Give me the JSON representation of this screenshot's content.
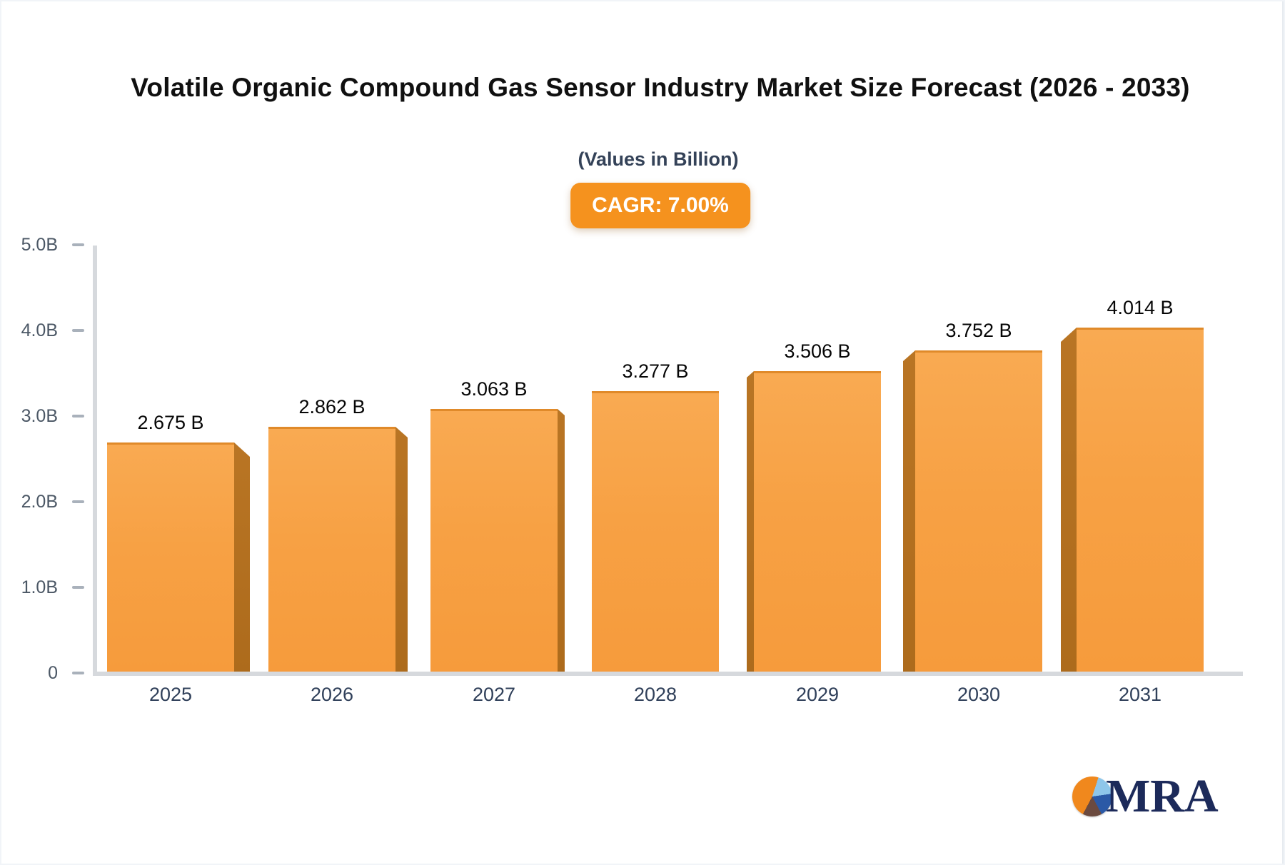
{
  "logo": {
    "text": "MRA"
  },
  "colors": {
    "bar_face": "#f7a144",
    "bar_face_top_edge": "#e08a2a",
    "bar_3d_side": "#b06e1c",
    "badge_background": "#f5921e",
    "badge_text": "#ffffff",
    "title_text": "#101010",
    "subtitle_text": "#344258",
    "axis_line": "#d6d9dd",
    "y_tick_text": "#4b5765",
    "x_label_text": "#30405a",
    "value_label_text": "#060606",
    "logo_navy": "#1c2a5a",
    "logo_orange": "#f0881d",
    "logo_light_blue": "#8ec6ea",
    "logo_blue": "#2b59a6",
    "logo_dark": "#6b4a3f"
  },
  "chart_data": {
    "type": "bar",
    "title": "Volatile Organic Compound Gas Sensor Industry Market Size Forecast (2026 - 2033)",
    "subtitle": "(Values in Billion)",
    "cagr_label": "CAGR: 7.00%",
    "categories": [
      "2025",
      "2026",
      "2027",
      "2028",
      "2029",
      "2030",
      "2031"
    ],
    "values": [
      2.675,
      2.862,
      3.063,
      3.277,
      3.506,
      3.752,
      4.014
    ],
    "value_labels": [
      "2.675 B",
      "2.862 B",
      "3.063 B",
      "3.277 B",
      "3.506 B",
      "3.752 B",
      "4.014 B"
    ],
    "unit": "Billion",
    "xlabel": "",
    "ylabel": "",
    "ylim": [
      0,
      5
    ],
    "yticks": [
      {
        "label": "5.0B",
        "value": 5
      },
      {
        "label": "4.0B",
        "value": 4
      },
      {
        "label": "3.0B",
        "value": 3
      },
      {
        "label": "2.0B",
        "value": 2
      },
      {
        "label": "1.0B",
        "value": 1
      },
      {
        "label": "0",
        "value": 0
      }
    ],
    "grid": false,
    "legend": false,
    "style": "3d-column, central perspective, orange bars"
  }
}
